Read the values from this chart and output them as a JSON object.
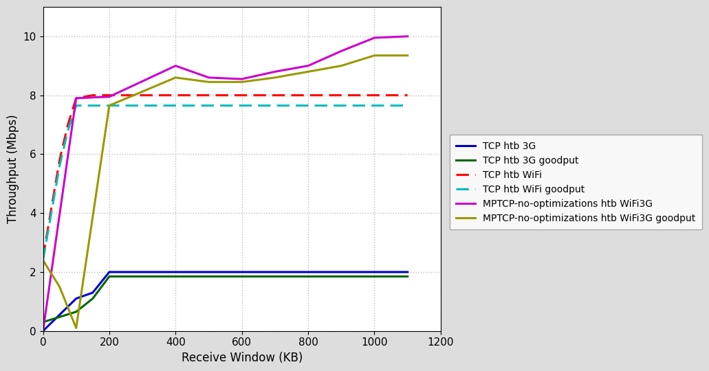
{
  "title": "",
  "xlabel": "Receive Window (KB)",
  "ylabel": "Throughput (Mbps)",
  "xlim": [
    0,
    1200
  ],
  "ylim": [
    0,
    11
  ],
  "yticks": [
    0,
    2,
    4,
    6,
    8,
    10
  ],
  "xticks": [
    0,
    200,
    400,
    600,
    800,
    1000,
    1200
  ],
  "series": [
    {
      "label": "TCP htb 3G",
      "color": "#0000cc",
      "linestyle": "-",
      "linewidth": 2.2,
      "x": [
        0,
        100,
        150,
        200,
        300,
        400,
        600,
        800,
        1000,
        1100
      ],
      "y": [
        0,
        1.1,
        1.3,
        2.0,
        2.0,
        2.0,
        2.0,
        2.0,
        2.0,
        2.0
      ]
    },
    {
      "label": "TCP htb 3G goodput",
      "color": "#006600",
      "linestyle": "-",
      "linewidth": 2.2,
      "x": [
        0,
        100,
        150,
        200,
        300,
        400,
        600,
        800,
        1000,
        1100
      ],
      "y": [
        0.3,
        0.65,
        1.1,
        1.85,
        1.85,
        1.85,
        1.85,
        1.85,
        1.85,
        1.85
      ]
    },
    {
      "label": "TCP htb WiFi",
      "color": "#ff0000",
      "linestyle": "--",
      "linewidth": 2.2,
      "x": [
        0,
        50,
        75,
        100,
        150,
        200,
        400,
        600,
        800,
        1000,
        1100
      ],
      "y": [
        2.5,
        5.8,
        7.0,
        7.9,
        8.0,
        8.0,
        8.0,
        8.0,
        8.0,
        8.0,
        8.0
      ]
    },
    {
      "label": "TCP htb WiFi goodput",
      "color": "#00bbbb",
      "linestyle": "--",
      "linewidth": 2.2,
      "x": [
        0,
        50,
        75,
        100,
        150,
        200,
        400,
        600,
        800,
        1000,
        1100
      ],
      "y": [
        2.4,
        5.6,
        6.8,
        7.65,
        7.65,
        7.65,
        7.65,
        7.65,
        7.65,
        7.65,
        7.65
      ]
    },
    {
      "label": "MPTCP-no-optimizations htb WiFi3G",
      "color": "#cc00cc",
      "linestyle": "-",
      "linewidth": 2.2,
      "x": [
        0,
        100,
        200,
        400,
        500,
        600,
        700,
        800,
        900,
        1000,
        1100
      ],
      "y": [
        0,
        7.9,
        7.95,
        9.0,
        8.6,
        8.55,
        8.8,
        9.0,
        9.5,
        9.95,
        10.0
      ]
    },
    {
      "label": "MPTCP-no-optimizations htb WiFi3G goodput",
      "color": "#999900",
      "linestyle": "-",
      "linewidth": 2.2,
      "x": [
        0,
        50,
        100,
        200,
        400,
        500,
        600,
        700,
        800,
        900,
        1000,
        1100
      ],
      "y": [
        2.4,
        1.5,
        0.1,
        7.65,
        8.6,
        8.45,
        8.45,
        8.6,
        8.8,
        9.0,
        9.35,
        9.35
      ]
    }
  ],
  "legend_loc": "center right",
  "grid_color": "#bbbbbb",
  "background_color": "#ffffff",
  "figure_bg": "#dddddd"
}
